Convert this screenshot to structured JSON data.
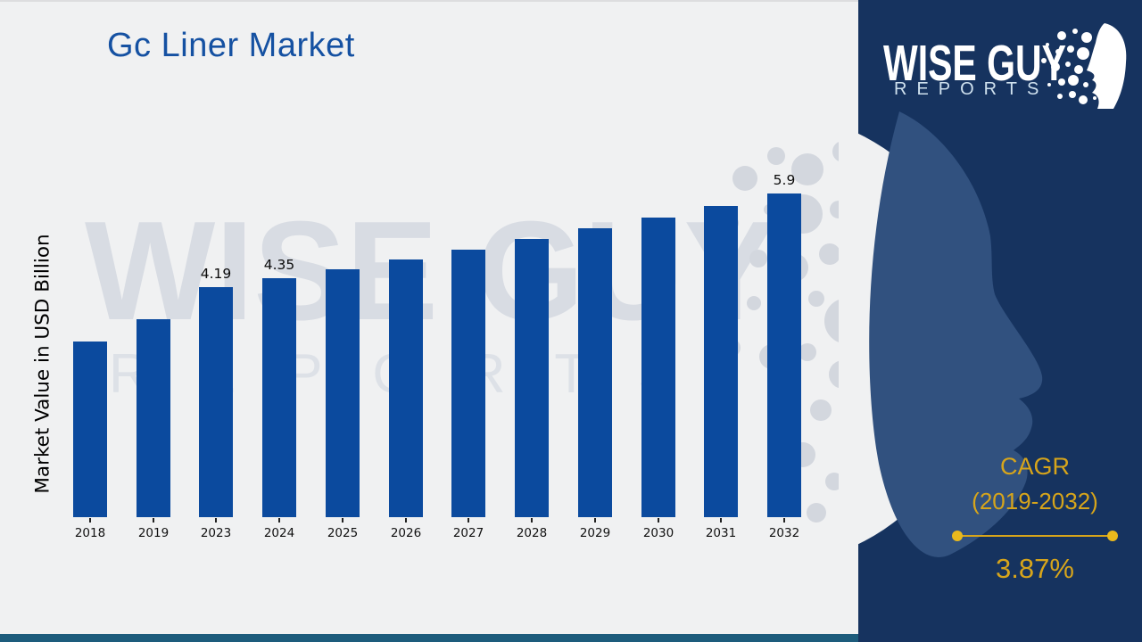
{
  "header": {
    "title": "Gc Liner Market",
    "title_color": "#1551a2"
  },
  "chart_data": {
    "type": "bar",
    "title": "Gc Liner Market",
    "xlabel": "",
    "ylabel": "Market Value in USD Billion",
    "categories": [
      "2018",
      "2019",
      "2023",
      "2024",
      "2025",
      "2026",
      "2027",
      "2028",
      "2029",
      "2030",
      "2031",
      "2032"
    ],
    "values": [
      3.2,
      3.6,
      4.19,
      4.35,
      4.52,
      4.69,
      4.87,
      5.06,
      5.26,
      5.46,
      5.67,
      5.9
    ],
    "bar_value_labels": [
      null,
      null,
      "4.19",
      "4.35",
      null,
      null,
      null,
      null,
      null,
      null,
      null,
      "5.9"
    ],
    "unit": "USD Billion",
    "bar_color": "#0b4a9e",
    "ylim": [
      0,
      6.6
    ],
    "grid": false,
    "legend": false
  },
  "branding": {
    "logo_line1": "WISE GUY",
    "logo_line2": "REPORTS",
    "cagr_label": "CAGR",
    "cagr_period": "(2019-2032)",
    "cagr_value": "3.87%"
  },
  "watermark": {
    "line1": "WISE GUY",
    "line2": "REPORTS"
  },
  "colors": {
    "background": "#f0f1f2",
    "bar": "#0b4a9e",
    "navy_panel": "#16335f",
    "face_shade": "#31517f",
    "gold": "#d7a51b",
    "teal_strip": "#1d5c7c",
    "watermark_gray": "#d8dce3"
  }
}
